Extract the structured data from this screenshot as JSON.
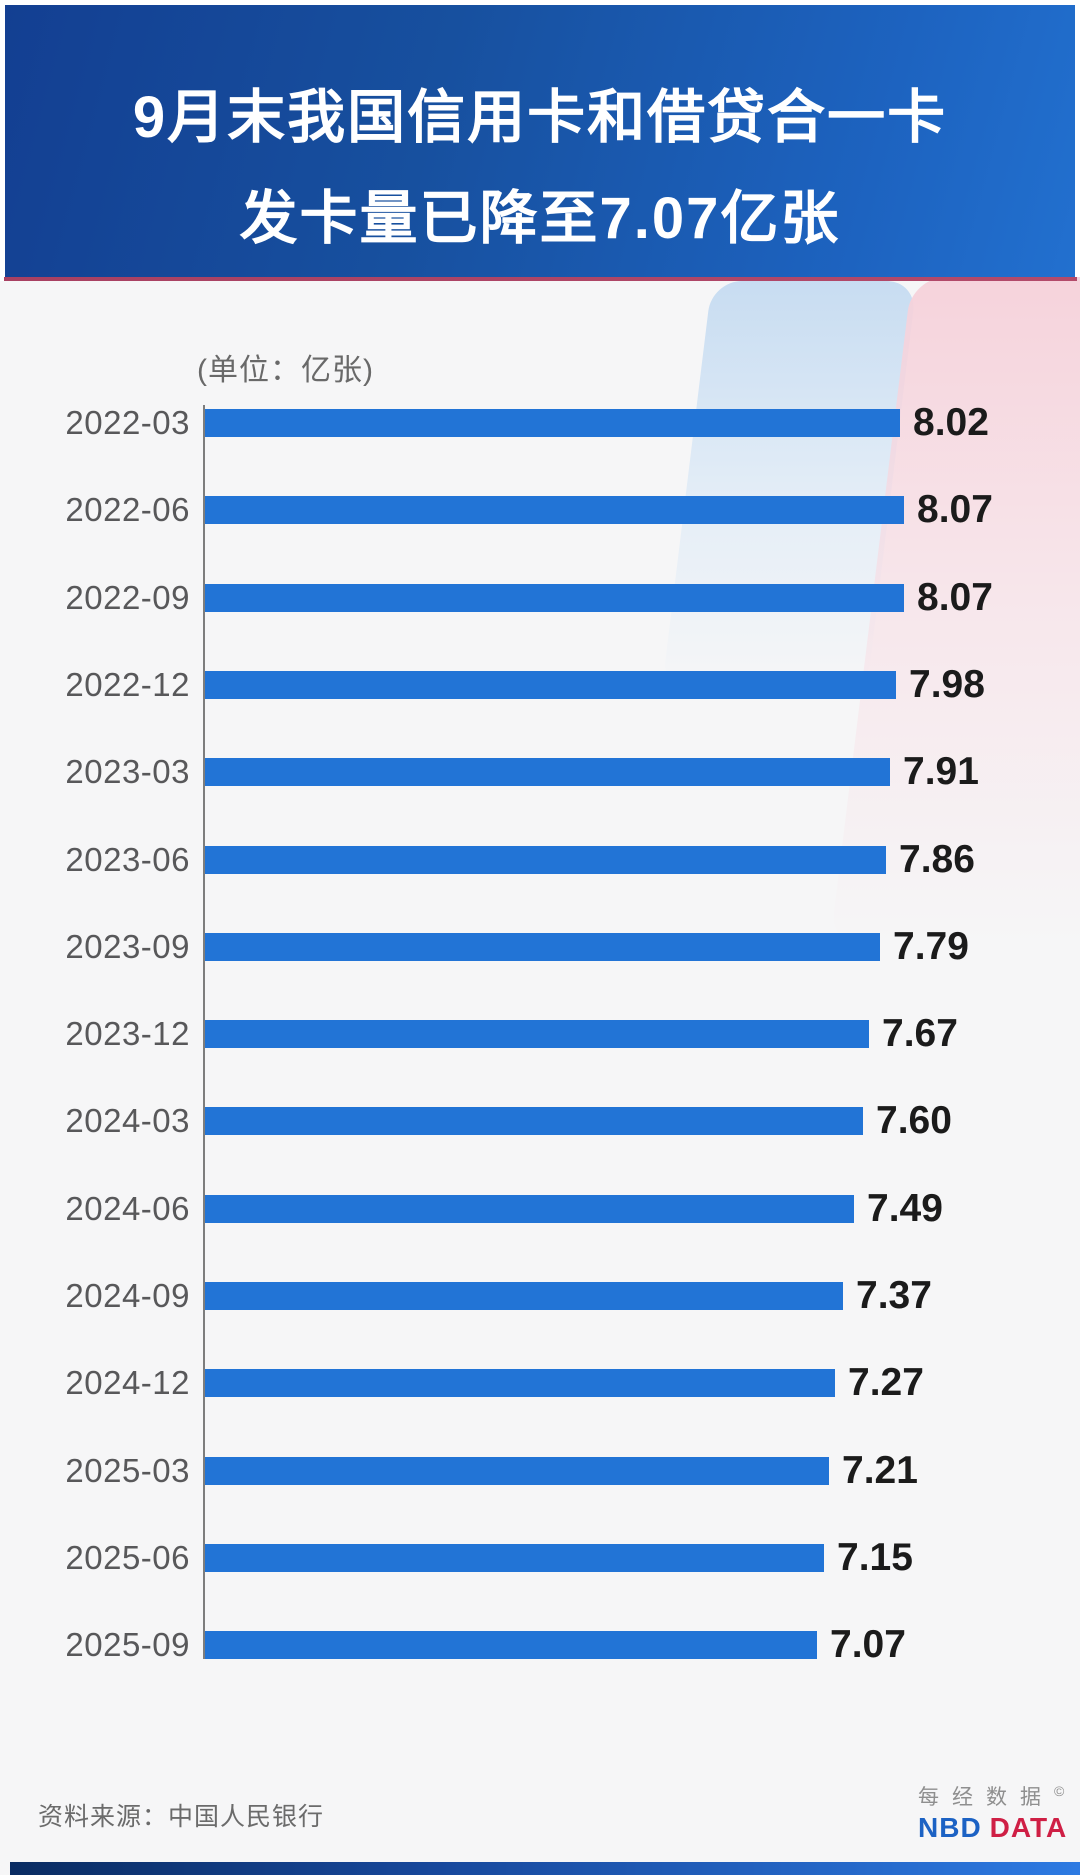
{
  "header": {
    "title_line1": "9月末我国信用卡和借贷合一卡",
    "title_line2": "发卡量已降至7.07亿张"
  },
  "chart_data": {
    "type": "bar",
    "orientation": "horizontal",
    "title": "9月末我国信用卡和借贷合一卡发卡量已降至7.07亿张",
    "unit_label": "(单位：亿张)",
    "categories": [
      "2022-03",
      "2022-06",
      "2022-09",
      "2022-12",
      "2023-03",
      "2023-06",
      "2023-09",
      "2023-12",
      "2024-03",
      "2024-06",
      "2024-09",
      "2024-12",
      "2025-03",
      "2025-06",
      "2025-09"
    ],
    "values": [
      8.02,
      8.07,
      8.07,
      7.98,
      7.91,
      7.86,
      7.79,
      7.67,
      7.6,
      7.49,
      7.37,
      7.27,
      7.21,
      7.15,
      7.07
    ],
    "value_decimals": 2,
    "xlim": [
      0,
      8.3
    ],
    "grid": false,
    "legend": "none",
    "bar_color": "#2274d6"
  },
  "footer": {
    "source": "资料来源：中国人民银行",
    "logo_cn": "每经数据",
    "logo_mark": "©",
    "logo_en_blue": "NBD",
    "logo_en_red": "DATA"
  },
  "colors": {
    "banner_dark": "#133f92",
    "banner_light": "#2270cf",
    "red_rule": "#b34a6a",
    "bar_blue": "#2274d6",
    "page_bg": "#f6f6f7",
    "category_text": "#58585a",
    "value_text": "#1b1b1b"
  }
}
